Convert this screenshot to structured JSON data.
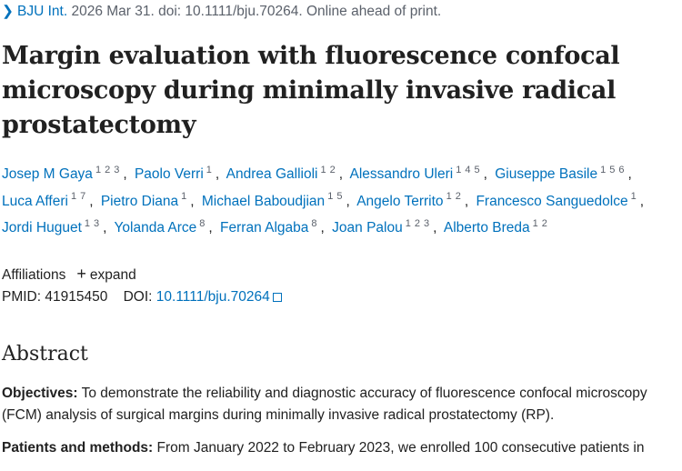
{
  "citation_line": {
    "journal": "BJU Int.",
    "details": "2026 Mar 31. doi: 10.1111/bju.70264. Online ahead of print."
  },
  "title": "Margin evaluation with fluorescence confocal microscopy during minimally invasive radical prostatectomy",
  "authors": [
    {
      "name": "Josep M Gaya",
      "affiliations": [
        1,
        2,
        3
      ]
    },
    {
      "name": "Paolo Verri",
      "affiliations": [
        1
      ]
    },
    {
      "name": "Andrea Gallioli",
      "affiliations": [
        1,
        2
      ]
    },
    {
      "name": "Alessandro Uleri",
      "affiliations": [
        1,
        4,
        5
      ]
    },
    {
      "name": "Giuseppe Basile",
      "affiliations": [
        1,
        5,
        6
      ]
    },
    {
      "name": "Luca Afferi",
      "affiliations": [
        1,
        7
      ]
    },
    {
      "name": "Pietro Diana",
      "affiliations": [
        1
      ]
    },
    {
      "name": "Michael Baboudjian",
      "affiliations": [
        1,
        5
      ]
    },
    {
      "name": "Angelo Territo",
      "affiliations": [
        1,
        2
      ]
    },
    {
      "name": "Francesco Sanguedolce",
      "affiliations": [
        1
      ]
    },
    {
      "name": "Jordi Huguet",
      "affiliations": [
        1,
        3
      ]
    },
    {
      "name": "Yolanda Arce",
      "affiliations": [
        8
      ]
    },
    {
      "name": "Ferran Algaba",
      "affiliations": [
        8
      ]
    },
    {
      "name": "Joan Palou",
      "affiliations": [
        1,
        2,
        3
      ]
    },
    {
      "name": "Alberto Breda",
      "affiliations": [
        1,
        2
      ]
    }
  ],
  "affiliations_toggle": {
    "label": "Affiliations",
    "action": "expand"
  },
  "identifiers": {
    "pmid_label": "PMID:",
    "pmid": "41915450",
    "doi_label": "DOI:",
    "doi": "10.1111/bju.70264"
  },
  "abstract": {
    "heading": "Abstract",
    "sections": [
      {
        "label": "Objectives:",
        "text": "To demonstrate the reliability and diagnostic accuracy of fluorescence confocal microscopy (FCM) analysis of surgical margins during minimally invasive radical prostatectomy (RP)."
      },
      {
        "label": "Patients and methods:",
        "text": "From January 2022 to February 2023, we enrolled 100 consecutive patients in"
      }
    ]
  }
}
